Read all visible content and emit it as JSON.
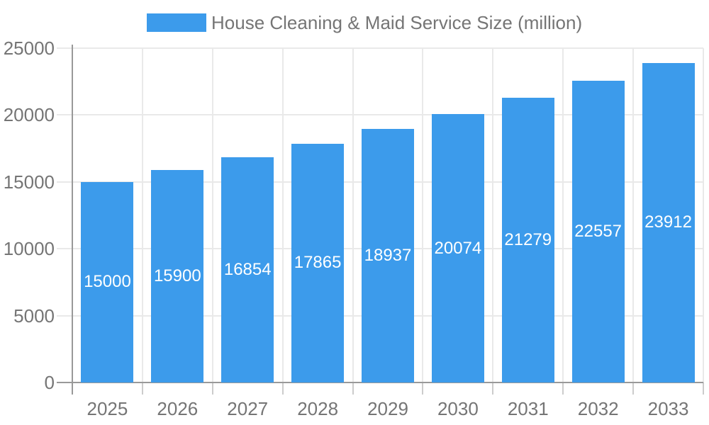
{
  "chart_data": {
    "type": "bar",
    "title": "House Cleaning & Maid Service Size (million)",
    "legend": [
      "House Cleaning & Maid Service Size (million)"
    ],
    "legend_position": "top",
    "categories": [
      "2025",
      "2026",
      "2027",
      "2028",
      "2029",
      "2030",
      "2031",
      "2032",
      "2033"
    ],
    "values": [
      15000,
      15900,
      16854,
      17865,
      18937,
      20074,
      21279,
      22557,
      23912
    ],
    "bar_value_labels": [
      "15000",
      "15900",
      "16854",
      "17865",
      "18937",
      "20074",
      "21279",
      "22557",
      "23912"
    ],
    "xlabel": "",
    "ylabel": "",
    "ylim": [
      0,
      25000
    ],
    "yticks": [
      0,
      5000,
      10000,
      15000,
      20000,
      25000
    ],
    "grid": true,
    "colors": {
      "bar": "#3C9BEB",
      "bar_label": "#FFFFFF",
      "axis_text": "#757575",
      "gridline": "#E9E9E9",
      "axis_line": "#999999",
      "tick": "#CCCCCC",
      "background": "#FFFFFF"
    }
  }
}
